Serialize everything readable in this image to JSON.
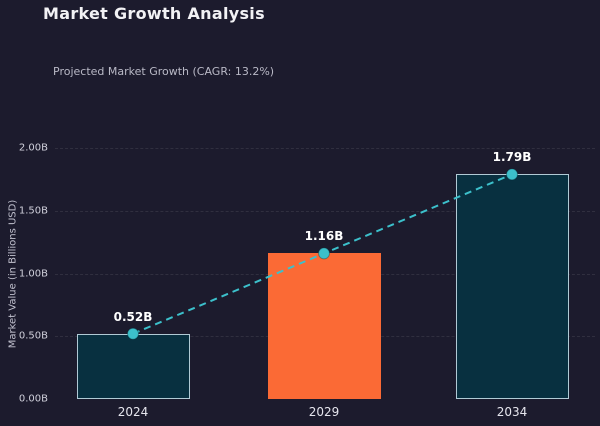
{
  "header": {
    "title": "Market Growth Analysis",
    "subtitle": "Projected Market Growth (CAGR: 13.2%)"
  },
  "chart_data": {
    "type": "bar",
    "title": "Market Growth Analysis",
    "subtitle": "Projected Market Growth (CAGR: 13.2%)",
    "categories": [
      "2024",
      "2029",
      "2034"
    ],
    "values": [
      0.52,
      1.16,
      1.79
    ],
    "value_labels": [
      "0.52B",
      "1.16B",
      "1.79B"
    ],
    "xlabel": "",
    "ylabel": "Market Value (in Billions USD)",
    "ylim": [
      0,
      2.0
    ],
    "yticks": [
      0,
      0.5,
      1.0,
      1.5,
      2.0
    ],
    "ytick_labels": [
      "0.00B",
      "0.50B",
      "1.00B",
      "1.50B",
      "2.00B"
    ],
    "grid": true,
    "grid_style": "dashed",
    "legend": "none",
    "trend_line": {
      "style": "dashed",
      "values": [
        0.52,
        1.16,
        1.79
      ],
      "color": "#3cc0cb",
      "marker": "circle",
      "marker_color": "#3cc0cb"
    },
    "colors": {
      "background": "#1c1b2d",
      "bar_fills": [
        "#083040",
        "#fb6a35",
        "#083040"
      ],
      "bar_borders": [
        "rgba(196,219,230,0.9)",
        "none",
        "rgba(196,219,230,0.9)"
      ],
      "title_text": "#f2f2f5",
      "subtitle_text": "#b9b9c6",
      "tick_text": "#cfcfda",
      "xtick_text": "#e6e6ee",
      "axis_label_text": "#c2c2cf",
      "value_label_text": "#ffffff",
      "gridline": "rgba(255,255,255,0.09)"
    }
  }
}
